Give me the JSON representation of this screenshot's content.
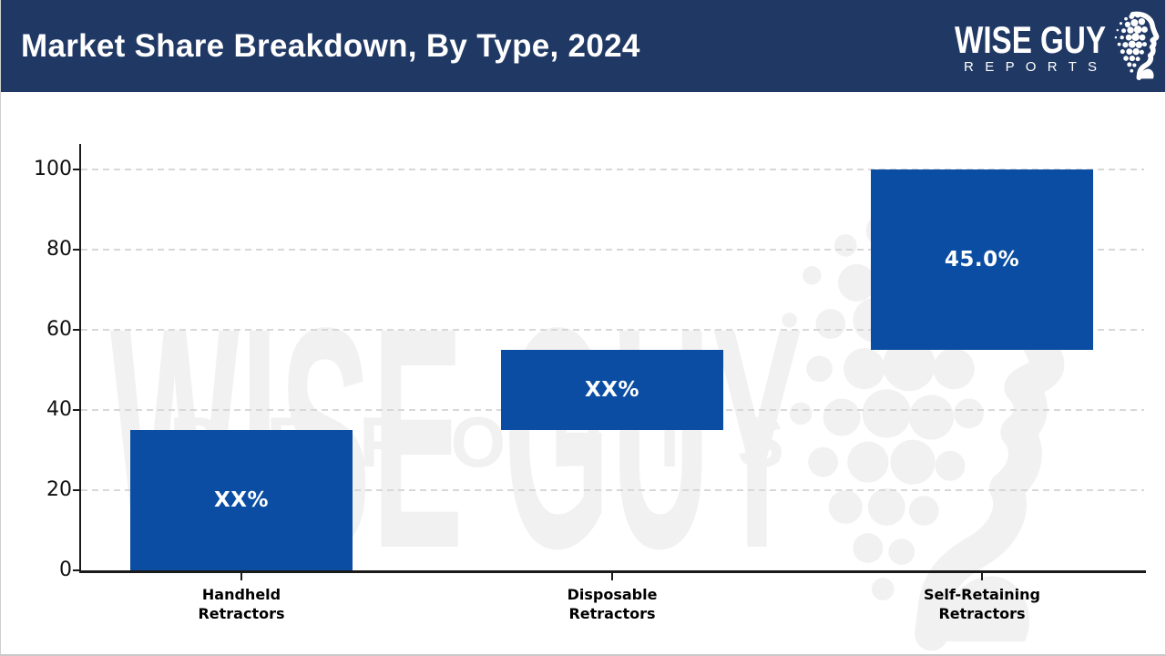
{
  "header": {
    "title": "Market Share Breakdown, By Type, 2024",
    "logo": {
      "line1": "WISE GUY",
      "line2": "R E P O R T S"
    }
  },
  "watermark": {
    "line1": "WISE GUY",
    "line2": "R E P O R T S"
  },
  "colors": {
    "header_bg": "#203864",
    "bar": "#0B4DA2",
    "bar_label": "#ffffff",
    "grid": "#d8d8d8",
    "axis": "#1a1a1a",
    "watermark": "#f1f1f1",
    "title_text": "#ffffff"
  },
  "chart_data": {
    "type": "bar",
    "subtype": "floating_segment_bars",
    "title": "Market Share Breakdown, By Type, 2024",
    "categories": [
      "Handheld Retractors",
      "Disposable Retractors",
      "Self-Retaining Retractors"
    ],
    "category_label_lines": [
      [
        "Handheld",
        "Retractors"
      ],
      [
        "Disposable",
        "Retractors"
      ],
      [
        "Self-Retaining",
        "Retractors"
      ]
    ],
    "series": [
      {
        "name": "Market share (%)",
        "segments": [
          {
            "category": "Handheld Retractors",
            "base": 0,
            "top": 35,
            "value": 35,
            "label": "XX%"
          },
          {
            "category": "Disposable Retractors",
            "base": 35,
            "top": 55,
            "value": 20,
            "label": "XX%"
          },
          {
            "category": "Self-Retaining Retractors",
            "base": 55,
            "top": 100,
            "value": 45,
            "label": "45.0%"
          }
        ]
      }
    ],
    "xlabel": "",
    "ylabel": "",
    "ylim": [
      0,
      106
    ],
    "yticks": [
      0,
      20,
      40,
      60,
      80,
      100
    ],
    "grid": {
      "horizontal": true,
      "style": "dashed"
    },
    "legend": false
  }
}
